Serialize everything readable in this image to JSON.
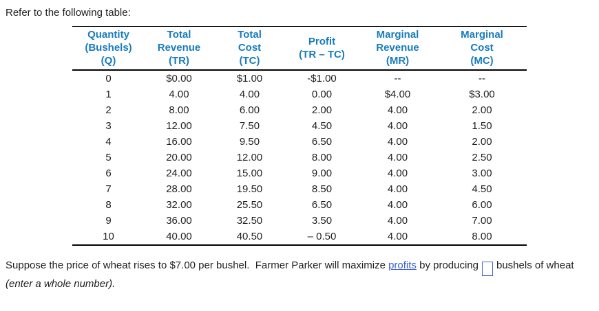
{
  "colors": {
    "header_blue": "#177cbe",
    "link_blue": "#3a5fcd",
    "input_border": "#4169bf"
  },
  "intro_text": "Refer to the following table:",
  "table": {
    "headers": [
      {
        "lines": [
          "Quantity",
          "(Bushels)",
          "(Q)"
        ]
      },
      {
        "lines": [
          "Total",
          "Revenue",
          "(TR)"
        ]
      },
      {
        "lines": [
          "Total",
          "Cost",
          "(TC)"
        ]
      },
      {
        "lines": [
          "Profit",
          "(TR – TC)"
        ]
      },
      {
        "lines": [
          "Marginal",
          "Revenue",
          "(MR)"
        ]
      },
      {
        "lines": [
          "Marginal",
          "Cost",
          "(MC)"
        ]
      }
    ],
    "rows": [
      [
        "0",
        "$0.00",
        "$1.00",
        "-$1.00",
        "--",
        "--"
      ],
      [
        "1",
        "4.00",
        "4.00",
        "0.00",
        "$4.00",
        "$3.00"
      ],
      [
        "2",
        "8.00",
        "6.00",
        "2.00",
        "4.00",
        "2.00"
      ],
      [
        "3",
        "12.00",
        "7.50",
        "4.50",
        "4.00",
        "1.50"
      ],
      [
        "4",
        "16.00",
        "9.50",
        "6.50",
        "4.00",
        "2.00"
      ],
      [
        "5",
        "20.00",
        "12.00",
        "8.00",
        "4.00",
        "2.50"
      ],
      [
        "6",
        "24.00",
        "15.00",
        "9.00",
        "4.00",
        "3.00"
      ],
      [
        "7",
        "28.00",
        "19.50",
        "8.50",
        "4.00",
        "4.50"
      ],
      [
        "8",
        "32.00",
        "25.50",
        "6.50",
        "4.00",
        "6.00"
      ],
      [
        "9",
        "36.00",
        "32.50",
        "3.50",
        "4.00",
        "7.00"
      ],
      [
        "10",
        "40.00",
        "40.50",
        "– 0.50",
        "4.00",
        "8.00"
      ]
    ]
  },
  "question": {
    "part1": "Suppose the price of wheat rises to $7.00 per bushel.  Farmer Parker will maximize ",
    "link_text": "profits",
    "part2": " by producing",
    "answer_value": "",
    "part3": "bushels of wheat ",
    "italic_note": "(enter a whole number)."
  }
}
